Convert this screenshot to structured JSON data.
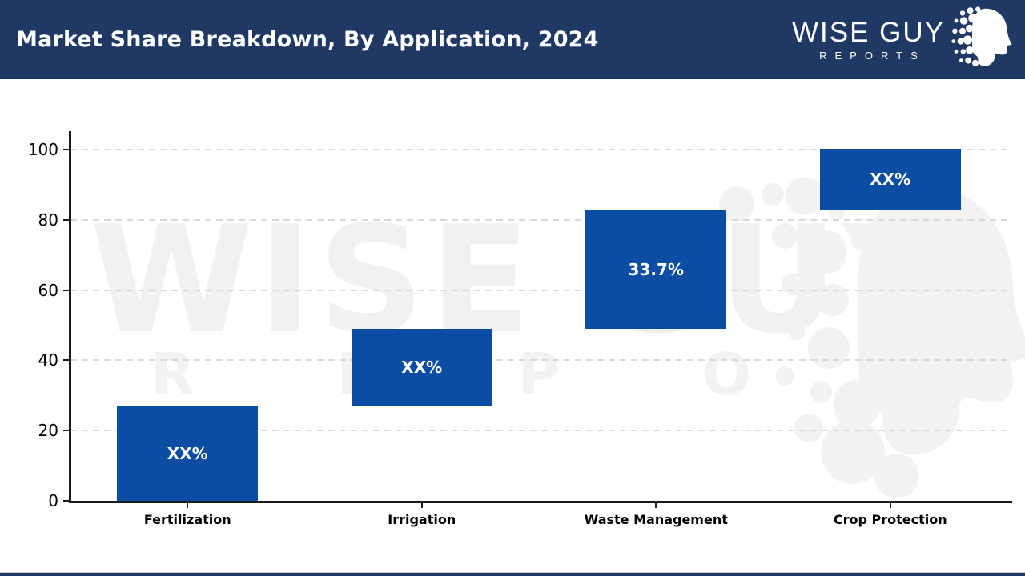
{
  "header": {
    "title": "Market Share Breakdown, By Application, 2024",
    "logo": {
      "line1": "WISE GUY",
      "line2": "REPORTS"
    }
  },
  "watermark": {
    "line1": "WISE GUY",
    "line2": "REPORTS"
  },
  "colors": {
    "header_bg": "#1f3864",
    "bar": "#0b4da2",
    "grid": "#d9d9d9",
    "watermark": "#f1f1f1",
    "bar_label": "#ffffff"
  },
  "chart_data": {
    "type": "bar",
    "subtype": "waterfall-floating-bars",
    "title": "Market Share Breakdown, By Application, 2024",
    "xlabel": "",
    "ylabel": "",
    "categories": [
      "Fertilization",
      "Irrigation",
      "Waste Management",
      "Crop Protection"
    ],
    "segments": [
      {
        "category": "Fertilization",
        "start": 0,
        "end": 26.9,
        "value": 26.9,
        "label": "XX%"
      },
      {
        "category": "Irrigation",
        "start": 26.9,
        "end": 49.0,
        "value": 22.1,
        "label": "XX%"
      },
      {
        "category": "Waste Management",
        "start": 49.0,
        "end": 82.7,
        "value": 33.7,
        "label": "33.7%"
      },
      {
        "category": "Crop Protection",
        "start": 82.7,
        "end": 100.3,
        "value": 17.6,
        "label": "XX%"
      }
    ],
    "ylim": [
      0,
      105
    ],
    "yticks": [
      0,
      20,
      40,
      60,
      80,
      100
    ],
    "grid": "horizontal-dashed",
    "legend": "none",
    "bar_color": "#0b4da2",
    "label_color": "#ffffff"
  }
}
